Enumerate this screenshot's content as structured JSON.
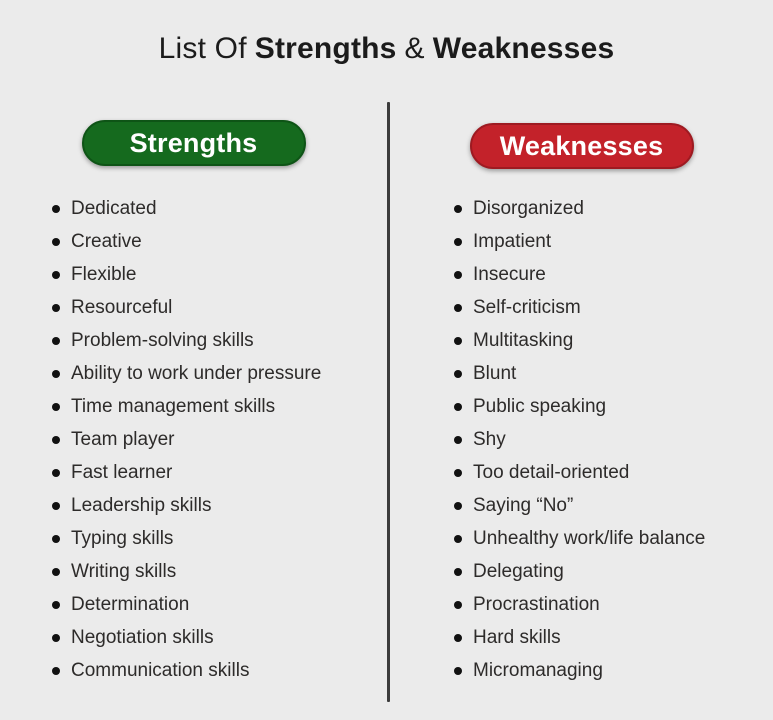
{
  "title": {
    "prefix": "List Of",
    "word1": "Strengths",
    "separator": "&",
    "word2": "Weaknesses"
  },
  "strengths": {
    "label": "Strengths",
    "items": [
      "Dedicated",
      "Creative",
      "Flexible",
      "Resourceful",
      "Problem-solving skills",
      "Ability to work under pressure",
      "Time management skills",
      "Team player",
      "Fast learner",
      "Leadership skills",
      "Typing skills",
      "Writing skills",
      "Determination",
      "Negotiation skills",
      "Communication skills"
    ]
  },
  "weaknesses": {
    "label": "Weaknesses",
    "items": [
      "Disorganized",
      "Impatient",
      "Insecure",
      "Self-criticism",
      "Multitasking",
      "Blunt",
      "Public speaking",
      "Shy",
      "Too detail-oriented",
      "Saying “No”",
      "Unhealthy work/life balance",
      "Delegating",
      "Procrastination",
      "Hard skills",
      "Micromanaging"
    ]
  },
  "colors": {
    "background": "#ebebeb",
    "title_text": "#1b1b1b",
    "list_text": "#2d2b2a",
    "bullet": "#111111",
    "divider": "#3c3c3c",
    "strengths_badge": "#156a1e",
    "strengths_badge_border": "#0e5416",
    "weaknesses_badge": "#c3222a",
    "weaknesses_badge_border": "#9e1a21",
    "badge_text": "#ffffff"
  }
}
